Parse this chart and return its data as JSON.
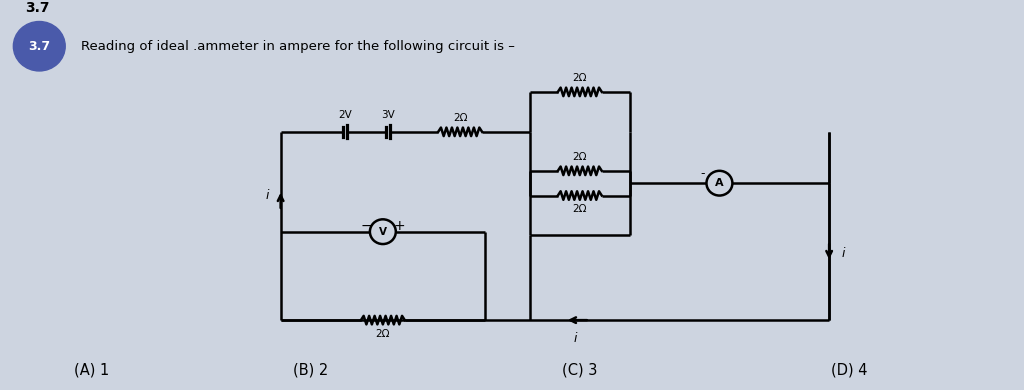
{
  "title_number": "3.7",
  "question_text": "Reading of ideal .ammeter in ampere for the following circuit is –",
  "options": [
    "(A) 1",
    "(B) 2",
    "(C) 3",
    "(D) 4"
  ],
  "bg_color": "#cdd4e0",
  "circuit": {
    "battery1_label": "2V",
    "battery2_label": "3V",
    "resistor_series_label": "2Ω",
    "resistor_top_label": "2Ω",
    "resistor_bottom_label": "2Ω",
    "resistor_par_top_label": "2Ω",
    "resistor_par_bot_label": "2Ω",
    "ammeter_label": "A",
    "voltmeter_label": "V",
    "current_label_left": "i",
    "current_label_right": "i",
    "current_label_bot": "i"
  },
  "lw": 1.8
}
